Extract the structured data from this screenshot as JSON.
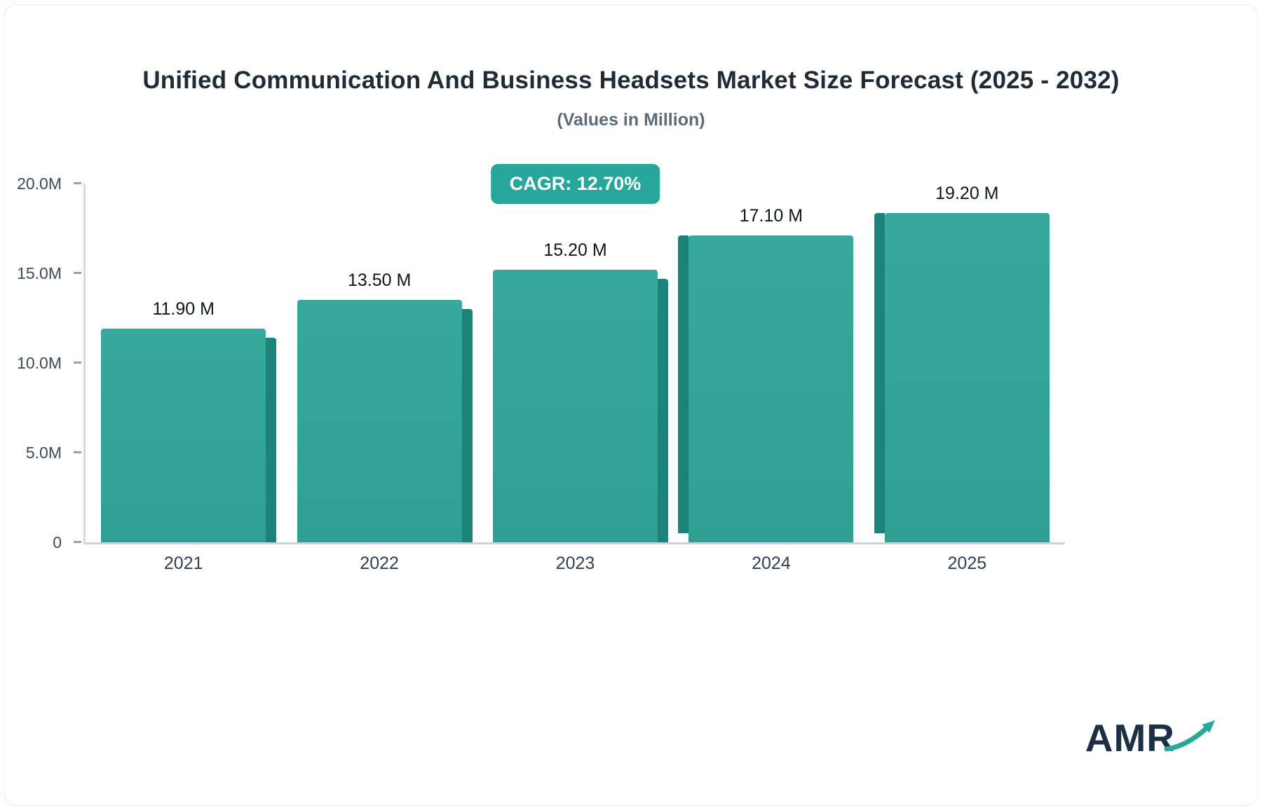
{
  "header": {
    "title": "Unified Communication And Business Headsets Market Size Forecast (2025 - 2032)",
    "subtitle": "(Values in Million)"
  },
  "badge": {
    "label": "CAGR: 12.70%"
  },
  "chart_data": {
    "type": "bar",
    "title": "Unified Communication And Business Headsets Market Size Forecast (2025 - 2032)",
    "subtitle": "(Values in Million)",
    "cagr_annotation": "CAGR: 12.70%",
    "unit": "Million",
    "categories": [
      "2021",
      "2022",
      "2023",
      "2024",
      "2025"
    ],
    "values": [
      11.9,
      13.5,
      15.2,
      17.1,
      19.2
    ],
    "value_labels": [
      "11.90 M",
      "13.50 M",
      "15.20 M",
      "17.10 M",
      "19.20 M"
    ],
    "xlabel": "",
    "ylabel": "",
    "ylim": [
      0,
      20
    ],
    "y_ticks": [
      "0",
      "5.0M",
      "10.0M",
      "15.0M",
      "20.0M"
    ],
    "y_tick_values": [
      0,
      5,
      10,
      15,
      20
    ],
    "grid": false,
    "legend": "none",
    "colors": {
      "bar_top": "#36a89c",
      "bar_bottom": "#2f9f93",
      "bar_side": "#1b837a",
      "badge_bg": "#27a69b",
      "title_text": "#212b36",
      "subtitle_text": "#5b6b7c",
      "axis_text": "#3f4a59",
      "logo_text": "#1d2f45",
      "logo_arrow": "#2aa79b"
    }
  },
  "logo": {
    "text": "AMR"
  }
}
